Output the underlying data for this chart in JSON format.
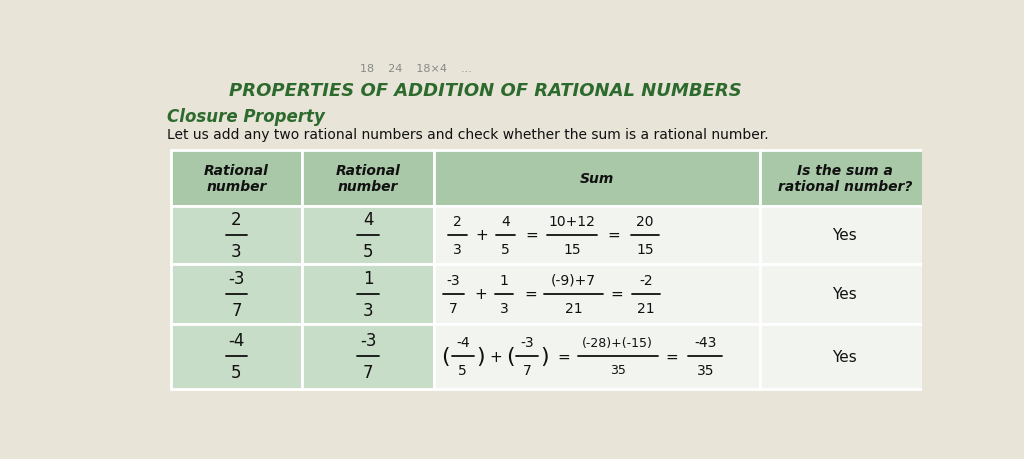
{
  "title": "PROPERTIES OF ADDITION OF RATIONAL NUMBERS",
  "subtitle": "Closure Property",
  "description": "Let us add any two rational numbers and check whether the sum is a rational number.",
  "title_color": "#2d6a2d",
  "subtitle_color": "#2d6a2d",
  "description_color": "#111111",
  "col_headers": [
    "Rational\nnumber",
    "Rational\nnumber",
    "Sum",
    "Is the sum a\nrational number?"
  ],
  "page_bg": "#e8e4d8",
  "table_header_bg": "#a8c8a8",
  "table_green_bg": "#c8ddc8",
  "table_light_bg": "#e8f0e8",
  "table_white_bg": "#f2f4f0",
  "border_color": "#ffffff",
  "text_color": "#111111",
  "fracs_col1": [
    [
      "2",
      "3"
    ],
    [
      "-3",
      "7"
    ],
    [
      "-4",
      "5"
    ]
  ],
  "fracs_col2": [
    [
      "4",
      "5"
    ],
    [
      "1",
      "3"
    ],
    [
      "-3",
      "7"
    ]
  ],
  "yes_col": [
    "Yes",
    "Yes",
    "Yes"
  ]
}
